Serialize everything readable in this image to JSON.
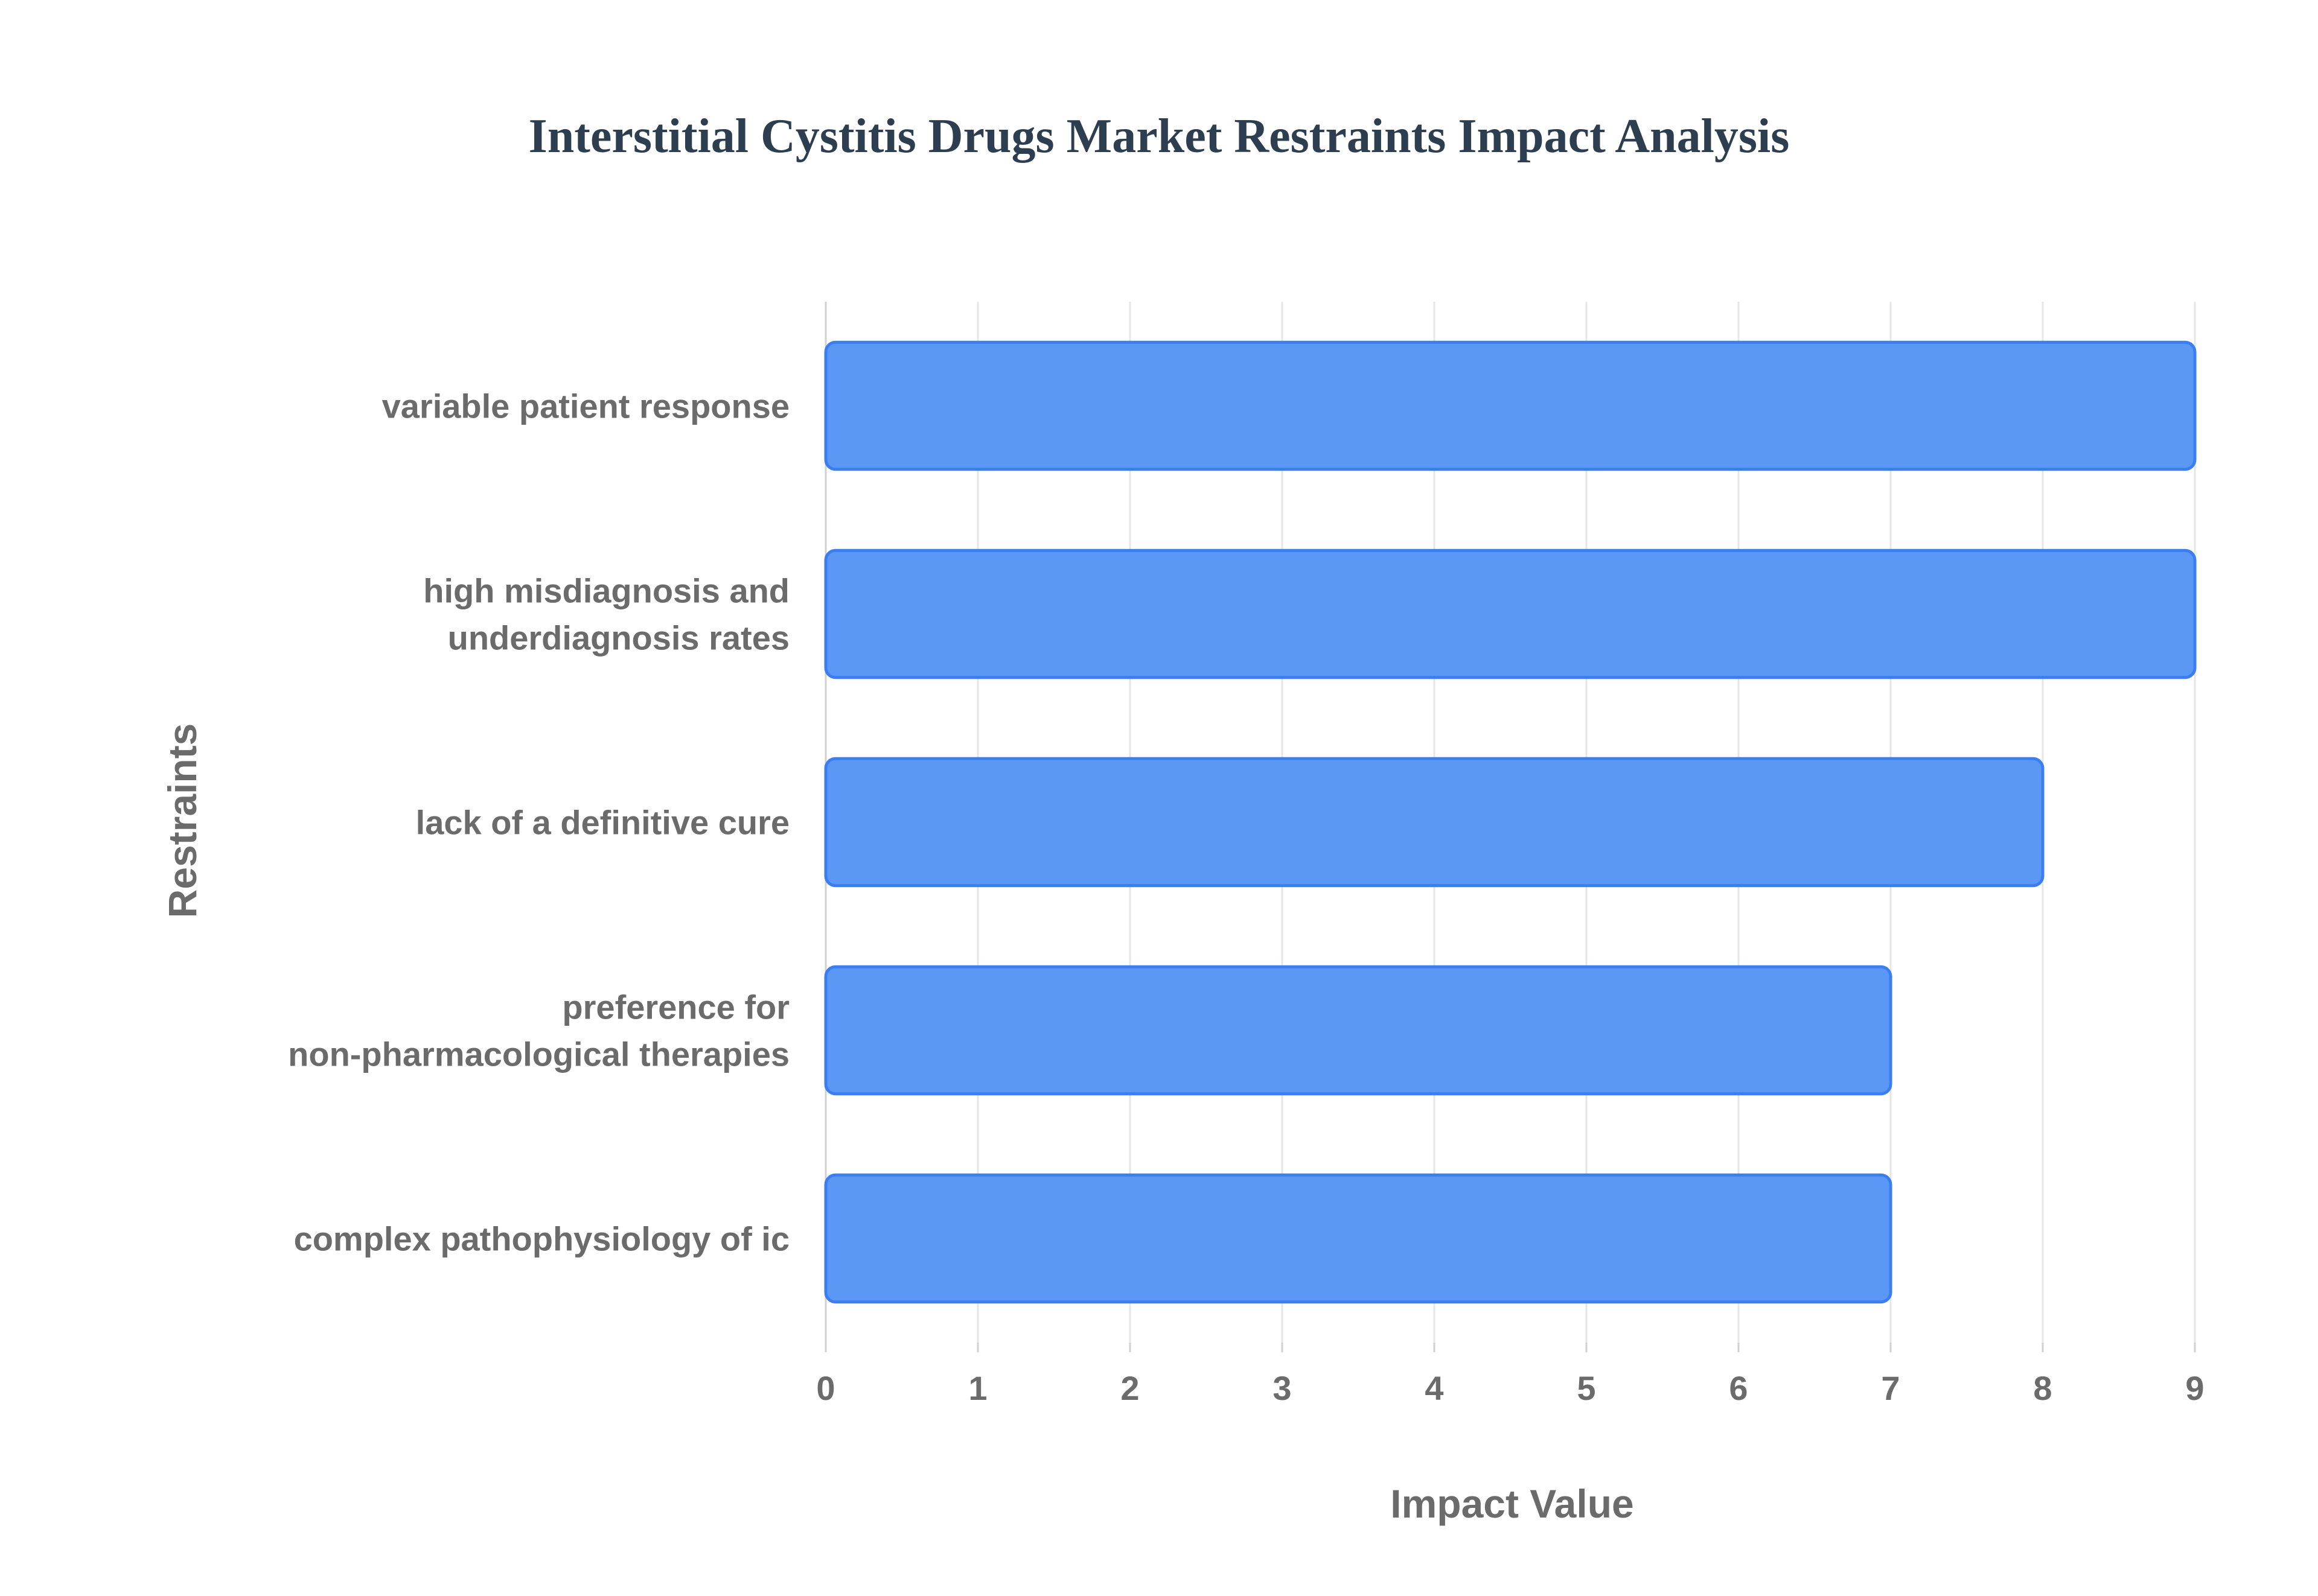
{
  "chart_data": {
    "type": "bar",
    "orientation": "horizontal",
    "title": "Interstitial Cystitis Drugs Market Restraints Impact Analysis",
    "xlabel": "Impact Value",
    "ylabel": "Restraints",
    "categories": [
      [
        "variable patient response"
      ],
      [
        "high misdiagnosis and",
        "underdiagnosis rates"
      ],
      [
        "lack of a definitive cure"
      ],
      [
        "preference for",
        "non-pharmacological therapies"
      ],
      [
        "complex pathophysiology of ic"
      ]
    ],
    "values": [
      9,
      9,
      8,
      7,
      7
    ],
    "xlim": [
      0,
      9
    ],
    "xticks": [
      "0",
      "1",
      "2",
      "3",
      "4",
      "5",
      "6",
      "7",
      "8",
      "9"
    ],
    "grid": true,
    "legend": "none",
    "colors": {
      "bar_fill": "#5b97f5",
      "bar_stroke": "#3b7ef0"
    }
  }
}
